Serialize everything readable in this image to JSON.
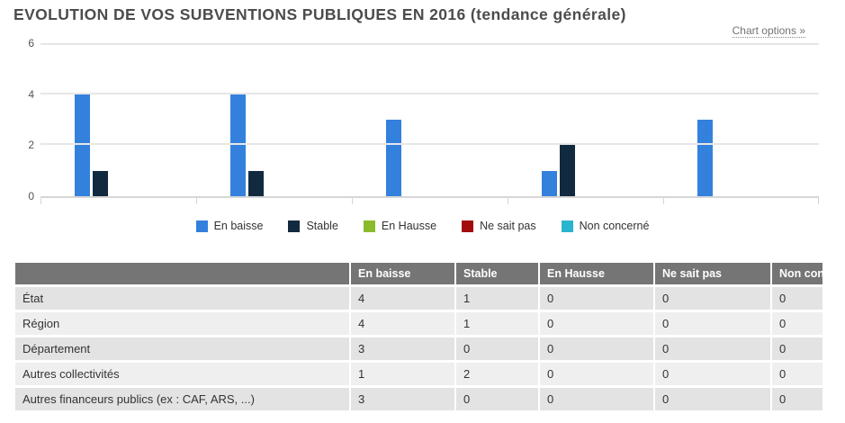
{
  "page": {
    "chart_options_label": "Chart options »"
  },
  "chart_data": {
    "type": "bar",
    "title": "EVOLUTION DE VOS SUBVENTIONS PUBLIQUES EN 2016 (tendance générale)",
    "categories": [
      "État",
      "Région",
      "Département",
      "Autres collectivités",
      "Autres financeurs publics (ex : CAF, ARS, ...)"
    ],
    "series": [
      {
        "name": "En baisse",
        "color": "#3381dd",
        "values": [
          4,
          4,
          3,
          1,
          3
        ]
      },
      {
        "name": "Stable",
        "color": "#122a40",
        "values": [
          1,
          1,
          0,
          2,
          0
        ]
      },
      {
        "name": "En Hausse",
        "color": "#8bbb2d",
        "values": [
          0,
          0,
          0,
          0,
          0
        ]
      },
      {
        "name": "Ne sait pas",
        "color": "#a30c0c",
        "values": [
          0,
          0,
          0,
          0,
          0
        ]
      },
      {
        "name": "Non concerné",
        "color": "#2ab4cd",
        "values": [
          0,
          0,
          0,
          0,
          0
        ]
      }
    ],
    "y_ticks": [
      0,
      2,
      4,
      6
    ],
    "ylim": [
      0,
      6
    ],
    "grid": true,
    "legend_position": "bottom",
    "x_tick_labels_visible": false
  },
  "table": {
    "columns": [
      "",
      "En baisse",
      "Stable",
      "En Hausse",
      "Ne sait pas",
      "Non concerné"
    ],
    "rows": [
      {
        "label": "État",
        "values": [
          "4",
          "1",
          "0",
          "0",
          "0"
        ]
      },
      {
        "label": "Région",
        "values": [
          "4",
          "1",
          "0",
          "0",
          "0"
        ]
      },
      {
        "label": "Département",
        "values": [
          "3",
          "0",
          "0",
          "0",
          "0"
        ]
      },
      {
        "label": "Autres collectivités",
        "values": [
          "1",
          "2",
          "0",
          "0",
          "0"
        ]
      },
      {
        "label": "Autres financeurs publics (ex : CAF, ARS, ...)",
        "values": [
          "3",
          "0",
          "0",
          "0",
          "0"
        ]
      }
    ]
  }
}
